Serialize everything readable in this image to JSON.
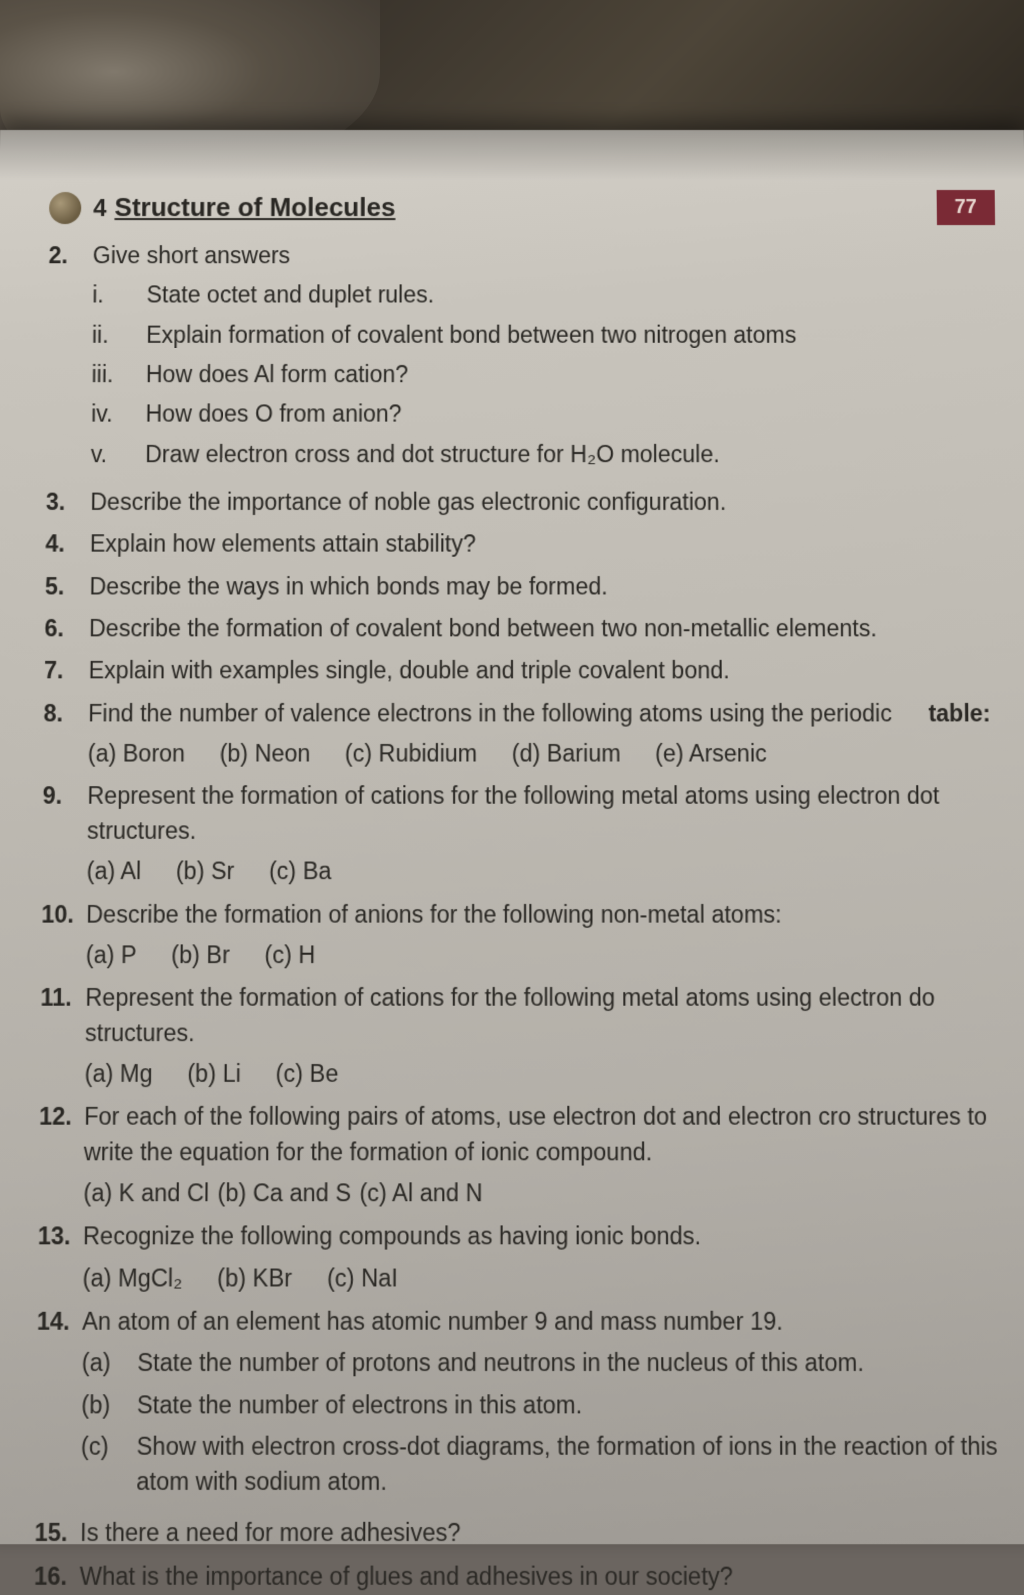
{
  "chapter": {
    "number": "4",
    "title": "Structure of Molecules",
    "page_number": "77"
  },
  "questions": [
    {
      "num": "2.",
      "text": "Give short answers",
      "subs": [
        {
          "num": "i.",
          "text": "State octet and duplet rules."
        },
        {
          "num": "ii.",
          "text": "Explain formation of covalent bond between two nitrogen atoms"
        },
        {
          "num": "iii.",
          "text": "How does Al form cation?"
        },
        {
          "num": "iv.",
          "text": "How does O from anion?"
        },
        {
          "num": "v.",
          "text": "Draw electron cross and dot structure for H₂O molecule."
        }
      ]
    },
    {
      "num": "3.",
      "text": "Describe the importance of noble gas electronic configuration."
    },
    {
      "num": "4.",
      "text": "Explain how elements attain stability?"
    },
    {
      "num": "5.",
      "text": "Describe the ways in which bonds may be formed."
    },
    {
      "num": "6.",
      "text": "Describe the formation of covalent bond between two non-metallic elements."
    },
    {
      "num": "7.",
      "text": "Explain with examples single, double and triple covalent bond."
    },
    {
      "num": "8.",
      "text": "Find the number of valence electrons in the following atoms using the periodic",
      "trail": "table:",
      "opts": [
        {
          "l": "(a)",
          "t": "Boron"
        },
        {
          "l": "(b)",
          "t": "Neon"
        },
        {
          "l": "(c)",
          "t": "Rubidium"
        },
        {
          "l": "(d)",
          "t": "Barium"
        },
        {
          "l": "(e)",
          "t": "Arsenic"
        }
      ]
    },
    {
      "num": "9.",
      "text": "Represent the formation of cations for the following metal atoms using electron dot structures.",
      "opts": [
        {
          "l": "(a)",
          "t": "Al"
        },
        {
          "l": "(b)",
          "t": "Sr"
        },
        {
          "l": "(c)",
          "t": "Ba"
        }
      ]
    },
    {
      "num": "10.",
      "text": "Describe the formation of anions for the following non-metal atoms:",
      "opts": [
        {
          "l": "(a)",
          "t": "P"
        },
        {
          "l": "(b)",
          "t": "Br"
        },
        {
          "l": "(c)",
          "t": "H"
        }
      ]
    },
    {
      "num": "11.",
      "text": "Represent the formation of cations for the following metal atoms using electron do structures.",
      "opts": [
        {
          "l": "(a)",
          "t": "Mg"
        },
        {
          "l": "(b)",
          "t": "Li"
        },
        {
          "l": "(c)",
          "t": "Be"
        }
      ]
    },
    {
      "num": "12.",
      "text": "For each of the following pairs of atoms, use electron dot and electron cro structures to write the equation for the formation of ionic compound.",
      "opts": [
        {
          "l": "(a)",
          "t": "K and Cl"
        },
        {
          "l": "(b)",
          "t": "Ca and S"
        },
        {
          "l": "(c)",
          "t": "Al and N"
        }
      ],
      "opts_tight": true
    },
    {
      "num": "13.",
      "text": "Recognize the following compounds as having ionic bonds.",
      "opts": [
        {
          "l": "(a)",
          "t": "MgCl₂"
        },
        {
          "l": "(b)",
          "t": "KBr"
        },
        {
          "l": "(c)",
          "t": "NaI"
        }
      ]
    },
    {
      "num": "14.",
      "text": "An atom of an element has atomic number 9 and mass number 19.",
      "subs": [
        {
          "num": "(a)",
          "text": "State the number of protons and neutrons in the nucleus of this atom."
        },
        {
          "num": "(b)",
          "text": "State the number of electrons in this atom."
        },
        {
          "num": "(c)",
          "text": "Show with electron cross-dot diagrams, the formation of ions in the reaction of this atom with sodium atom."
        }
      ]
    },
    {
      "num": "15.",
      "text": "Is there a need for more adhesives?"
    },
    {
      "num": "16.",
      "text": "What is the importance of glues and adhesives in our society?"
    }
  ]
}
